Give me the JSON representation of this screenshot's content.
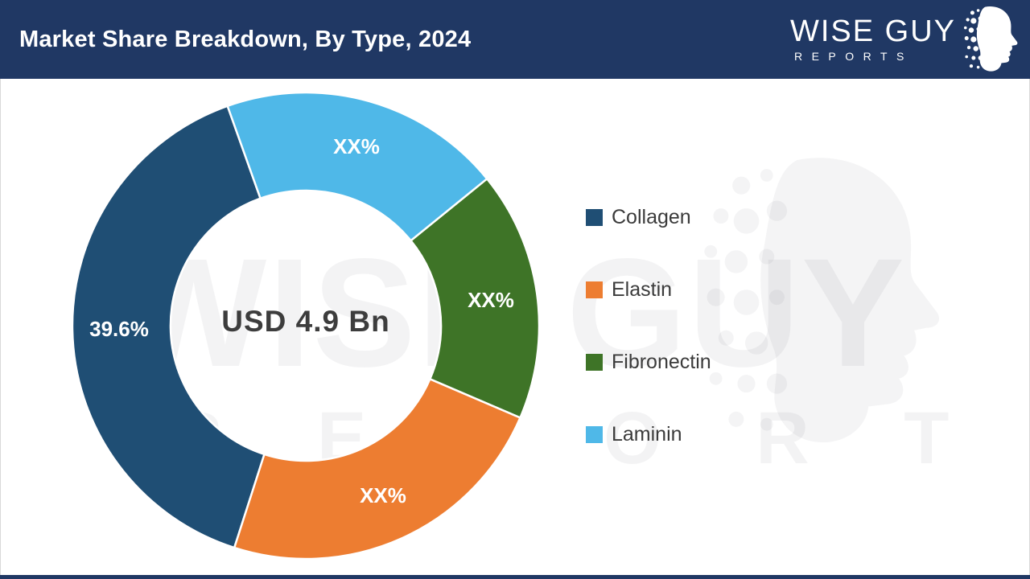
{
  "header": {
    "title": "Market Share Breakdown, By Type, 2024",
    "logo": {
      "brand_top": "WISE GUY",
      "brand_bottom": "REPORTS"
    }
  },
  "watermark": {
    "line1": "WISE GUY",
    "line2": "R E P O R T S"
  },
  "chart_data": {
    "type": "donut",
    "title": "Market Share Breakdown, By Type, 2024",
    "center_label": "USD 4.9 Bn",
    "unit": "percent market share",
    "rotation_deg": 109.6,
    "direction": "counterclockwise",
    "hole_radius_ratio": 0.58,
    "legend_position": "right",
    "series": [
      {
        "name": "Collagen",
        "label": "39.6%",
        "value": 39.6,
        "color": "#1f4e74"
      },
      {
        "name": "Elastin",
        "label": "XX%",
        "value": 23.5,
        "color": "#ed7d31"
      },
      {
        "name": "Fibronectin",
        "label": "XX%",
        "value": 17.3,
        "color": "#3e7427"
      },
      {
        "name": "Laminin",
        "label": "XX%",
        "value": 19.6,
        "color": "#4fb8e8"
      }
    ]
  },
  "colors": {
    "header_bg": "#203864",
    "center_text": "#3d3d3d",
    "legend_text": "#3b3b3b",
    "watermark": "#f2f2f2"
  }
}
